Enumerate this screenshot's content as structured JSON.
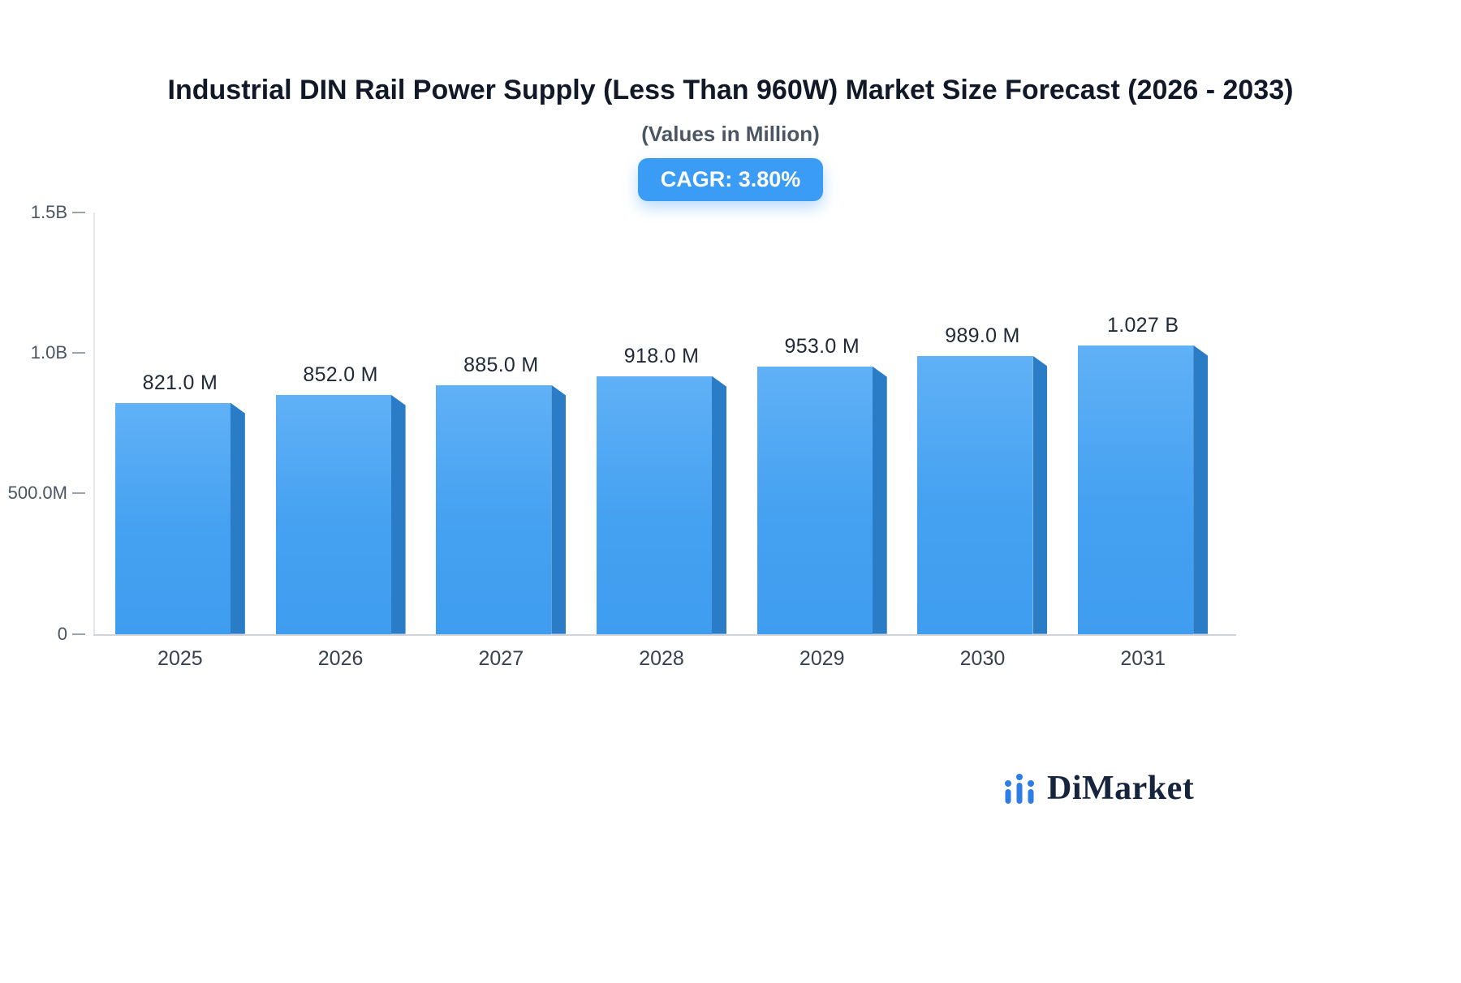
{
  "header": {
    "title": "Industrial DIN Rail Power Supply (Less Than 960W) Market Size Forecast (2026 - 2033)",
    "subtitle": "(Values in Million)",
    "cagr_label": "CAGR: 3.80%"
  },
  "colors": {
    "bar_face": "#45a1f1",
    "bar_side": "#2a7cc7",
    "badge_bg": "#3b9cf5",
    "logo_navy": "#16243d",
    "logo_blue": "#2e7de5"
  },
  "chart_data": {
    "type": "bar",
    "title": "Industrial DIN Rail Power Supply (Less Than 960W) Market Size Forecast (2026 - 2033)",
    "subtitle": "(Values in Million)",
    "unit": "Million",
    "cagr_percent": 3.8,
    "categories": [
      "2025",
      "2026",
      "2027",
      "2028",
      "2029",
      "2030",
      "2031"
    ],
    "values": [
      821.0,
      852.0,
      885.0,
      918.0,
      953.0,
      989.0,
      1027.0
    ],
    "value_labels": [
      "821.0 M",
      "852.0 M",
      "885.0 M",
      "918.0 M",
      "953.0 M",
      "989.0 M",
      "1.027 B"
    ],
    "xlabel": "",
    "ylabel": "",
    "ylim": [
      0,
      1500
    ],
    "y_tick_values": [
      0,
      500,
      1000,
      1500
    ],
    "y_tick_labels": [
      "0",
      "500.0M",
      "1.0B",
      "1.5B"
    ],
    "grid": false,
    "legend": false
  },
  "logo": {
    "text": "DiMarket",
    "icon": "bar-chart-logo-icon"
  }
}
